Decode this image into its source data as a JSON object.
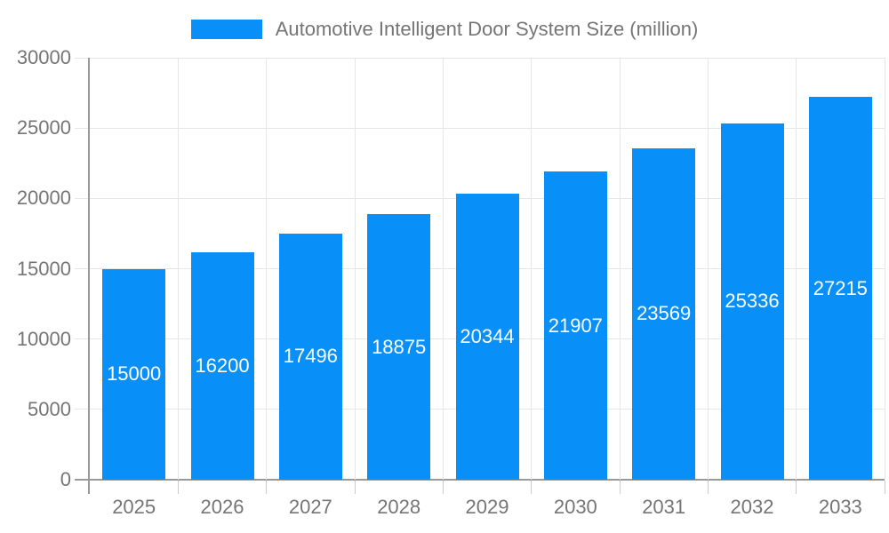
{
  "chart_data": {
    "type": "bar",
    "title": "Automotive Intelligent Door System Size (million)",
    "categories": [
      "2025",
      "2026",
      "2027",
      "2028",
      "2029",
      "2030",
      "2031",
      "2032",
      "2033"
    ],
    "values": [
      15000,
      16200,
      17496,
      18875,
      20344,
      21907,
      23569,
      25336,
      27215
    ],
    "xlabel": "",
    "ylabel": "",
    "ylim": [
      0,
      30000
    ],
    "yticks": [
      0,
      5000,
      10000,
      15000,
      20000,
      25000,
      30000
    ],
    "grid": true,
    "legend_position": "top-center",
    "bar_labels_inside": true
  },
  "legend": {
    "label": "Automotive Intelligent Door System Size (million)"
  },
  "colors": {
    "bar": "#0990f8",
    "bar_label": "#ffffff",
    "legend_text": "#757575",
    "axis_text": "#757575",
    "grid": "#e6e6e6",
    "axis_line": "#999999",
    "tick": "#cccccc",
    "background": "#ffffff"
  }
}
